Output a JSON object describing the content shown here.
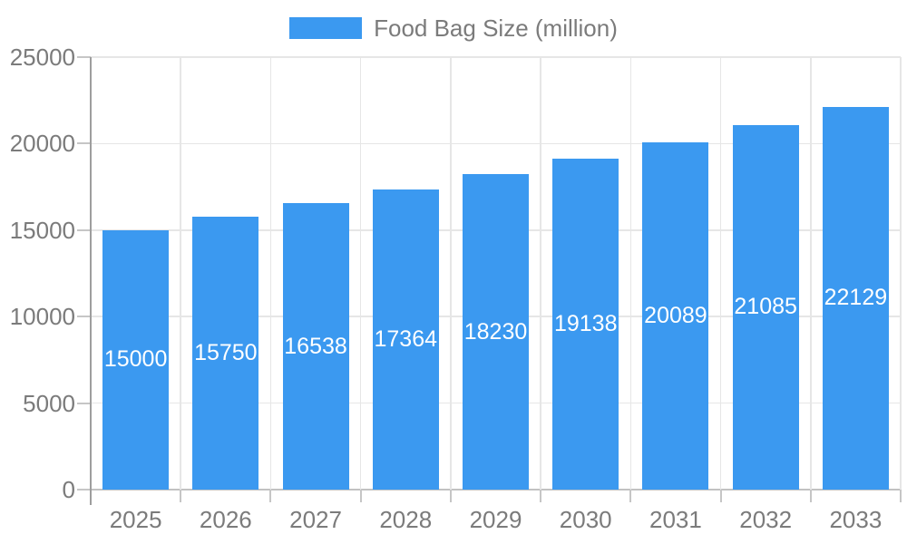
{
  "chart_data": {
    "type": "bar",
    "title": "",
    "legend": "Food Bag Size (million)",
    "legend_position": "top-center",
    "categories": [
      "2025",
      "2026",
      "2027",
      "2028",
      "2029",
      "2030",
      "2031",
      "2032",
      "2033"
    ],
    "values": [
      15000,
      15750,
      16538,
      17364,
      18230,
      19138,
      20089,
      21085,
      22129
    ],
    "xlabel": "",
    "ylabel": "",
    "ylim": [
      0,
      25000
    ],
    "yticks": [
      0,
      5000,
      10000,
      15000,
      20000,
      25000
    ],
    "grid": true,
    "bar_labels_inside": true,
    "colors": {
      "bar": "#3B99F0",
      "bar_label": "#FFFFFF",
      "axis_text": "#7B7B7B",
      "gridline": "#E6E6E6",
      "baseline": "#C2C2C2",
      "axis_line": "#9E9E9E",
      "tick": "#C6C6C6",
      "background": "#FFFFFF"
    }
  }
}
